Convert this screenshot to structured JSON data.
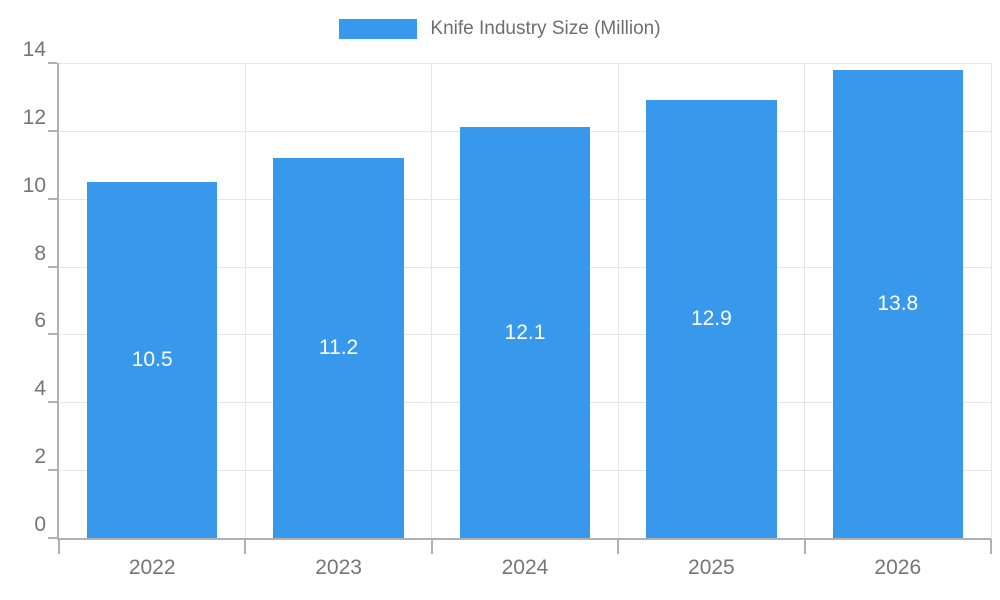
{
  "legend": {
    "series_label": "Knife Industry Size (Million)"
  },
  "colors": {
    "bar": "#3898EC",
    "grid": "#E6E6E6",
    "axis": "#B0B0B0",
    "tick_text": "#757575",
    "legend_text": "#6E6E6E",
    "value_label_text": "#FFFFFF"
  },
  "chart_data": {
    "type": "bar",
    "title": "Knife Industry Size (Million)",
    "categories": [
      "2022",
      "2023",
      "2024",
      "2025",
      "2026"
    ],
    "values": [
      10.5,
      11.2,
      12.1,
      12.9,
      13.8
    ],
    "value_labels": [
      "10.5",
      "11.2",
      "12.1",
      "12.9",
      "13.8"
    ],
    "xlabel": "",
    "ylabel": "",
    "ylim": [
      0,
      14
    ],
    "yticks": [
      0,
      2,
      4,
      6,
      8,
      10,
      12,
      14
    ],
    "grid": true,
    "legend_position": "top",
    "bar_width_fraction": 0.7
  }
}
